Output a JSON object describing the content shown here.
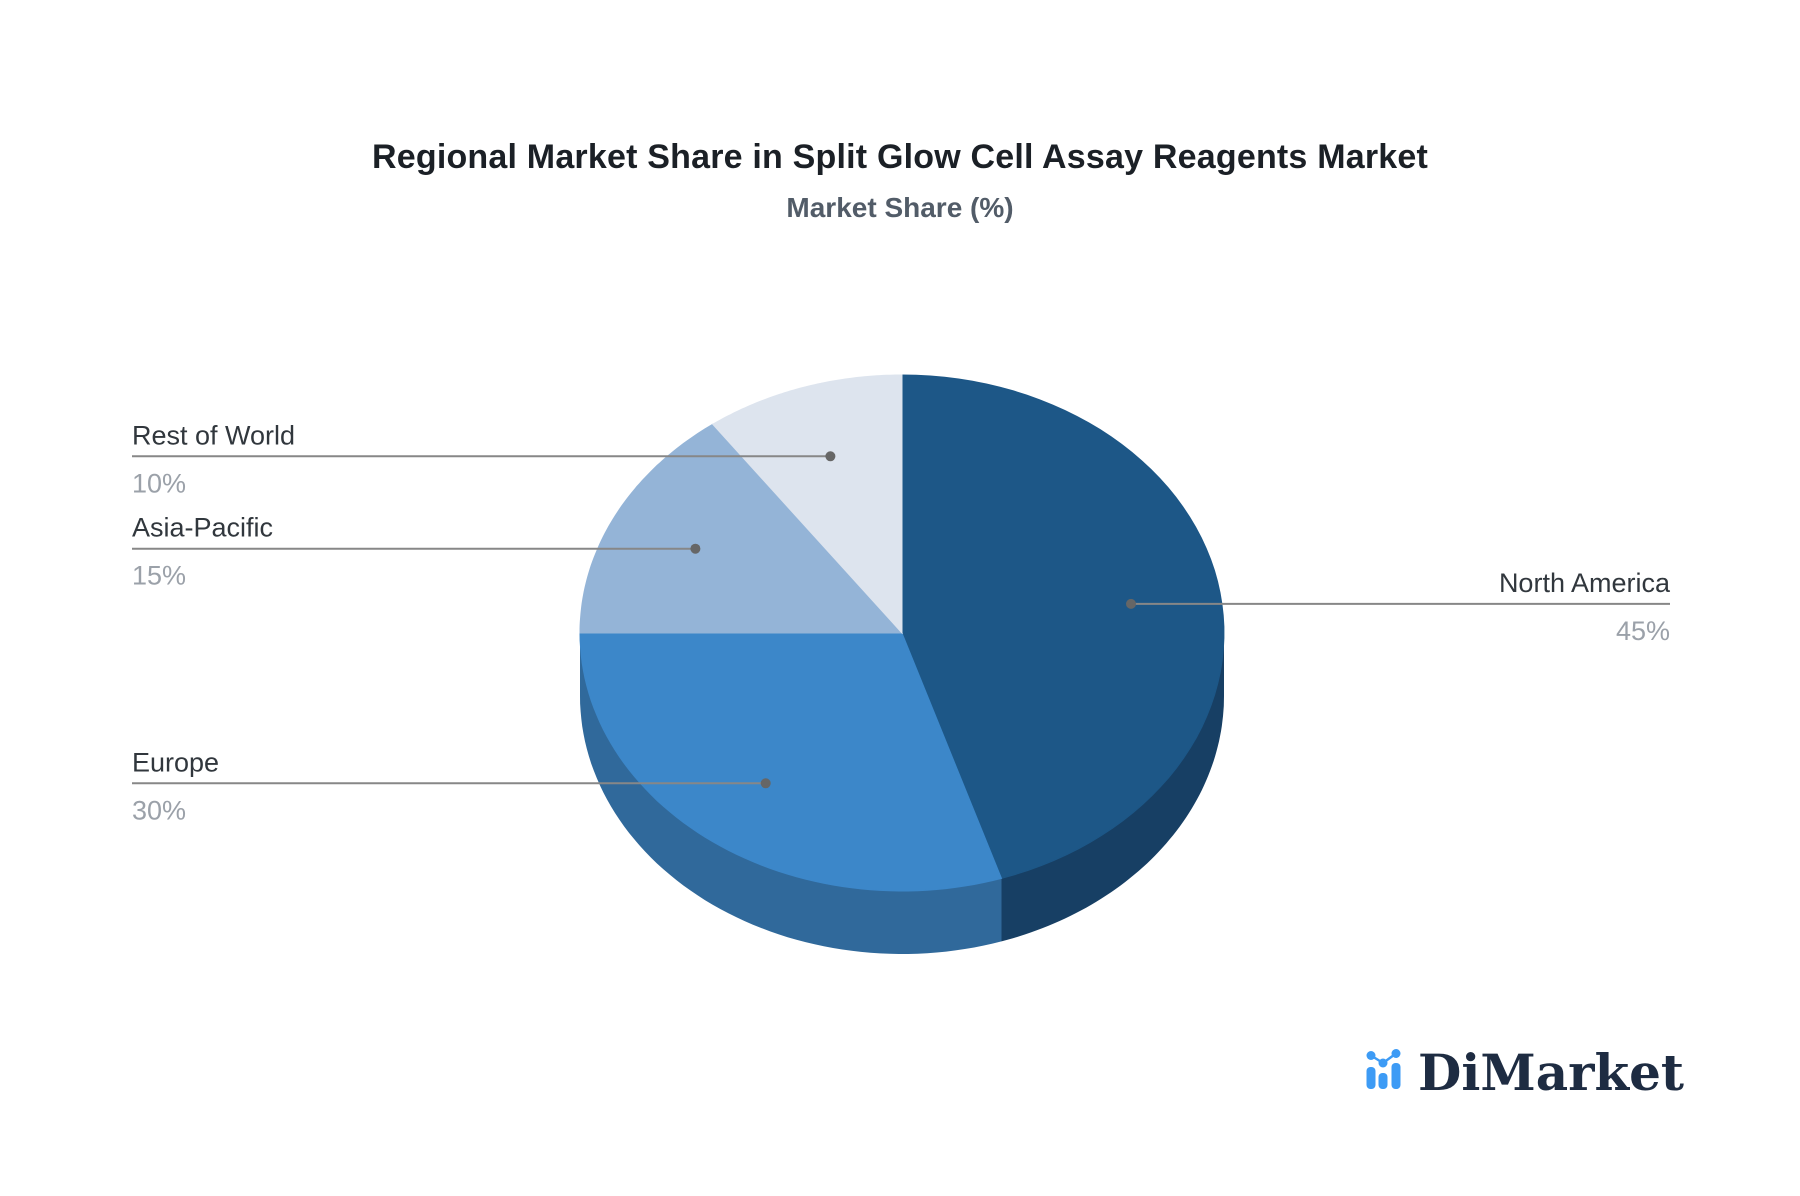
{
  "chart_data": {
    "type": "pie",
    "title": "Regional Market Share in Split Glow Cell Assay Reagents Market",
    "subtitle": "Market Share (%)",
    "unit": "%",
    "legend_position": "none",
    "label_layout": "leader-lines",
    "effect": "3d-depth",
    "categories": [
      "North America",
      "Europe",
      "Asia-Pacific",
      "Rest of World"
    ],
    "values": [
      45,
      30,
      15,
      10
    ],
    "slices": [
      {
        "label": "North America",
        "value": 45,
        "display": "45%",
        "color": "#1d5787",
        "side_color": "#173f64"
      },
      {
        "label": "Europe",
        "value": 30,
        "display": "30%",
        "color": "#3c87c9",
        "side_color": "#30699b"
      },
      {
        "label": "Asia-Pacific",
        "value": 15,
        "display": "15%",
        "color": "#94b4d7",
        "side_color": "#6e8cab"
      },
      {
        "label": "Rest of World",
        "value": 10,
        "display": "10%",
        "color": "#dde4ee",
        "side_color": "#aab4c4"
      }
    ],
    "style": {
      "background": "#ffffff",
      "title_color": "#1b2026",
      "subtitle_color": "#525c68",
      "leader_line_color": "#878787",
      "leader_dot_color": "#666666",
      "label_color": "#31373d",
      "percent_color": "#9ba1a9"
    }
  },
  "watermark": {
    "brand": "DiMarket",
    "icon": "bar-chart-logo-icon",
    "icon_color": "#3d9bf5",
    "text_color": "#1e2c42"
  }
}
